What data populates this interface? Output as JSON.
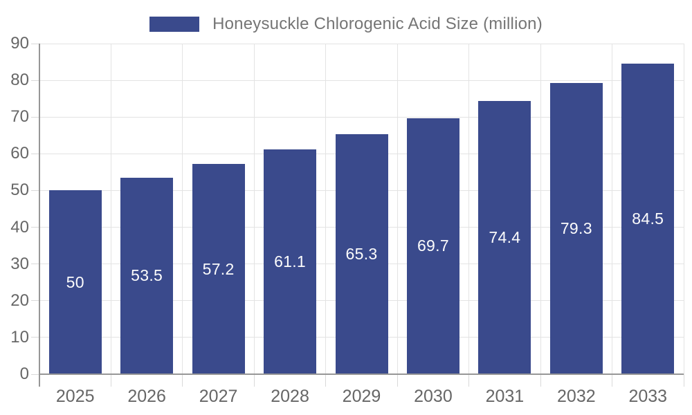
{
  "chart_data": {
    "type": "bar",
    "title": "",
    "legend_label": "Honeysuckle Chlorogenic Acid Size (million)",
    "legend_position": "top",
    "categories": [
      "2025",
      "2026",
      "2027",
      "2028",
      "2029",
      "2030",
      "2031",
      "2032",
      "2033"
    ],
    "values": [
      50,
      53.5,
      57.2,
      61.1,
      65.3,
      69.7,
      74.4,
      79.3,
      84.5
    ],
    "value_labels": [
      "50",
      "53.5",
      "57.2",
      "61.1",
      "65.3",
      "69.7",
      "74.4",
      "79.3",
      "84.5"
    ],
    "xlabel": "",
    "ylabel": "",
    "ylim": [
      0,
      90
    ],
    "yticks": [
      0,
      10,
      20,
      30,
      40,
      50,
      60,
      70,
      80,
      90
    ],
    "ytick_labels": [
      "0",
      "10",
      "20",
      "30",
      "40",
      "50",
      "60",
      "70",
      "80",
      "90"
    ],
    "grid": true,
    "colors": {
      "bar": "#3A4A8C",
      "grid": "#E3E3E3",
      "tick": "#D9D9D9",
      "axis": "#969696",
      "tick_text": "#666666",
      "legend_text": "#757575",
      "value_text": "#FCFCFC",
      "background": "#FFFFFF"
    }
  }
}
